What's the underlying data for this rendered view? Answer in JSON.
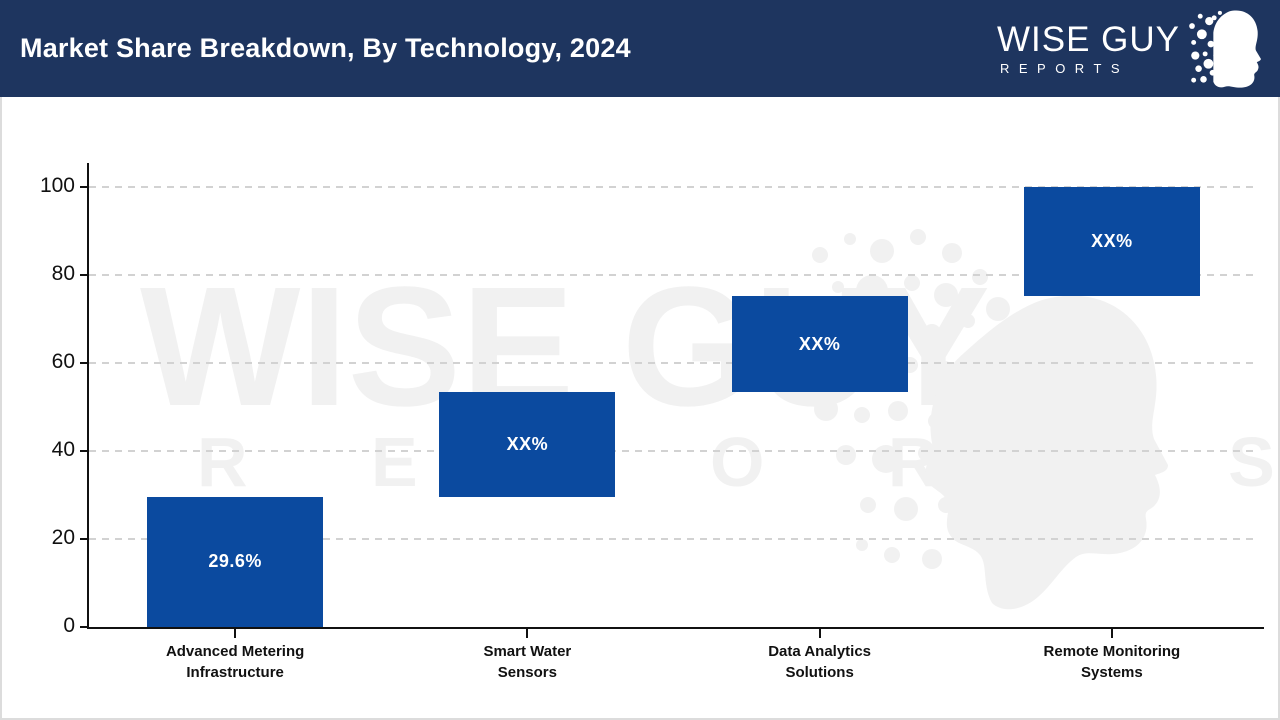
{
  "header": {
    "title": "Market Share Breakdown, By Technology, 2024",
    "logo": {
      "name": "WISE GUY",
      "sub": "REPORTS",
      "icon": "dot-face-profile"
    }
  },
  "watermark": {
    "big": "WISE GUY",
    "sub": "R E P O R T S",
    "icon": "dot-face-profile"
  },
  "colors": {
    "header_bg": "#1e355f",
    "bar": "#0b4a9f",
    "bar_label": "#ffffff",
    "grid": "#d2d2d2",
    "axis": "#111111",
    "watermark": "#f1f1f1"
  },
  "chart_data": {
    "type": "bar",
    "subtype": "waterfall",
    "title": "Market Share Breakdown, By Technology, 2024",
    "categories": [
      [
        "Advanced Metering",
        "Infrastructure"
      ],
      [
        "Smart Water",
        "Sensors"
      ],
      [
        "Data Analytics",
        "Solutions"
      ],
      [
        "Remote Monitoring",
        "Systems"
      ]
    ],
    "segments": [
      {
        "start": 0,
        "end": 29.6,
        "label": "29.6%"
      },
      {
        "start": 29.6,
        "end": 53.4,
        "label": "XX%"
      },
      {
        "start": 53.4,
        "end": 75.2,
        "label": "XX%"
      },
      {
        "start": 75.2,
        "end": 100,
        "label": "XX%"
      }
    ],
    "yticks": [
      0,
      20,
      40,
      60,
      80,
      100
    ],
    "ylim": [
      0,
      105
    ],
    "grid": "horizontal-dashed",
    "legend": "none",
    "bar_color": "#0b4a9f",
    "label_color": "#ffffff"
  }
}
